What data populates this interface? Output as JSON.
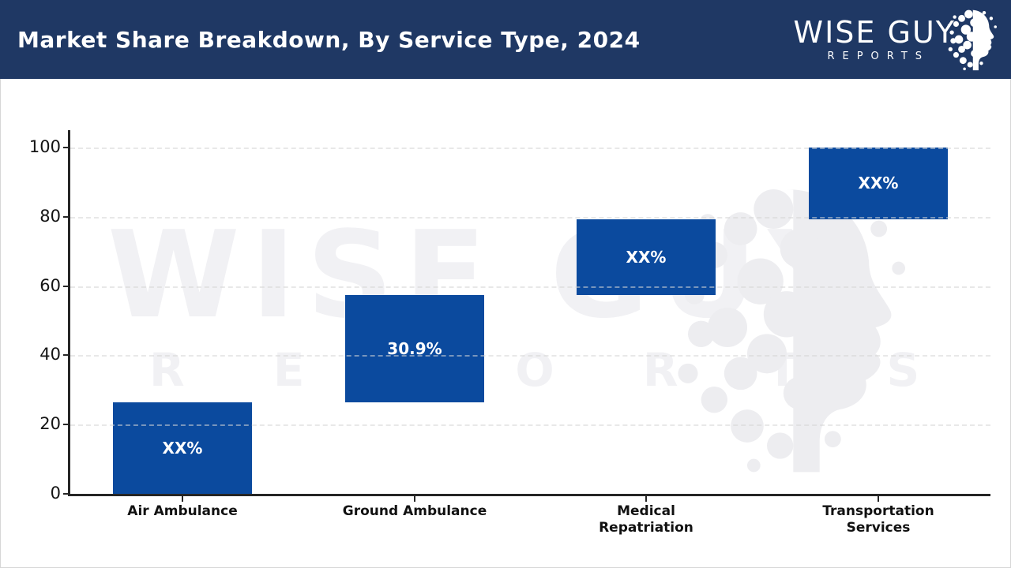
{
  "header": {
    "title": "Market Share Breakdown, By Service Type, 2024",
    "bg_color": "#1f3864",
    "logo": {
      "line1": "WISE GUY",
      "line2": "REPORTS"
    }
  },
  "watermark": {
    "line1": "WISE GUY",
    "line2": "R E P O R T S"
  },
  "chart_data": {
    "type": "bar",
    "subtype": "waterfall",
    "title": "Market Share Breakdown, By Service Type, 2024",
    "categories": [
      "Air Ambulance",
      "Ground Ambulance",
      "Medical Repatriation",
      "Transportation Services"
    ],
    "category_label_lines": [
      [
        "Air Ambulance"
      ],
      [
        "Ground Ambulance"
      ],
      [
        "Medical",
        "Repatriation"
      ],
      [
        "Transportation",
        "Services"
      ]
    ],
    "segments": [
      {
        "category": "Air Ambulance",
        "start": 0,
        "end": 26.4,
        "delta": 26.4,
        "label": "XX%"
      },
      {
        "category": "Ground Ambulance",
        "start": 26.4,
        "end": 57.3,
        "delta": 30.9,
        "label": "30.9%"
      },
      {
        "category": "Medical Repatriation",
        "start": 57.3,
        "end": 79.3,
        "delta": 22.0,
        "label": "XX%"
      },
      {
        "category": "Transportation Services",
        "start": 79.3,
        "end": 100,
        "delta": 20.7,
        "label": "XX%"
      }
    ],
    "yticks": [
      0,
      20,
      40,
      60,
      80,
      100
    ],
    "ylim": [
      0,
      105
    ],
    "xlabel": "",
    "ylabel": "",
    "bar_color": "#0b4a9e",
    "axis_color": "#262626",
    "grid": "dashed-horizontal",
    "gridline_color": "#d9d9d9",
    "legend": "none"
  }
}
